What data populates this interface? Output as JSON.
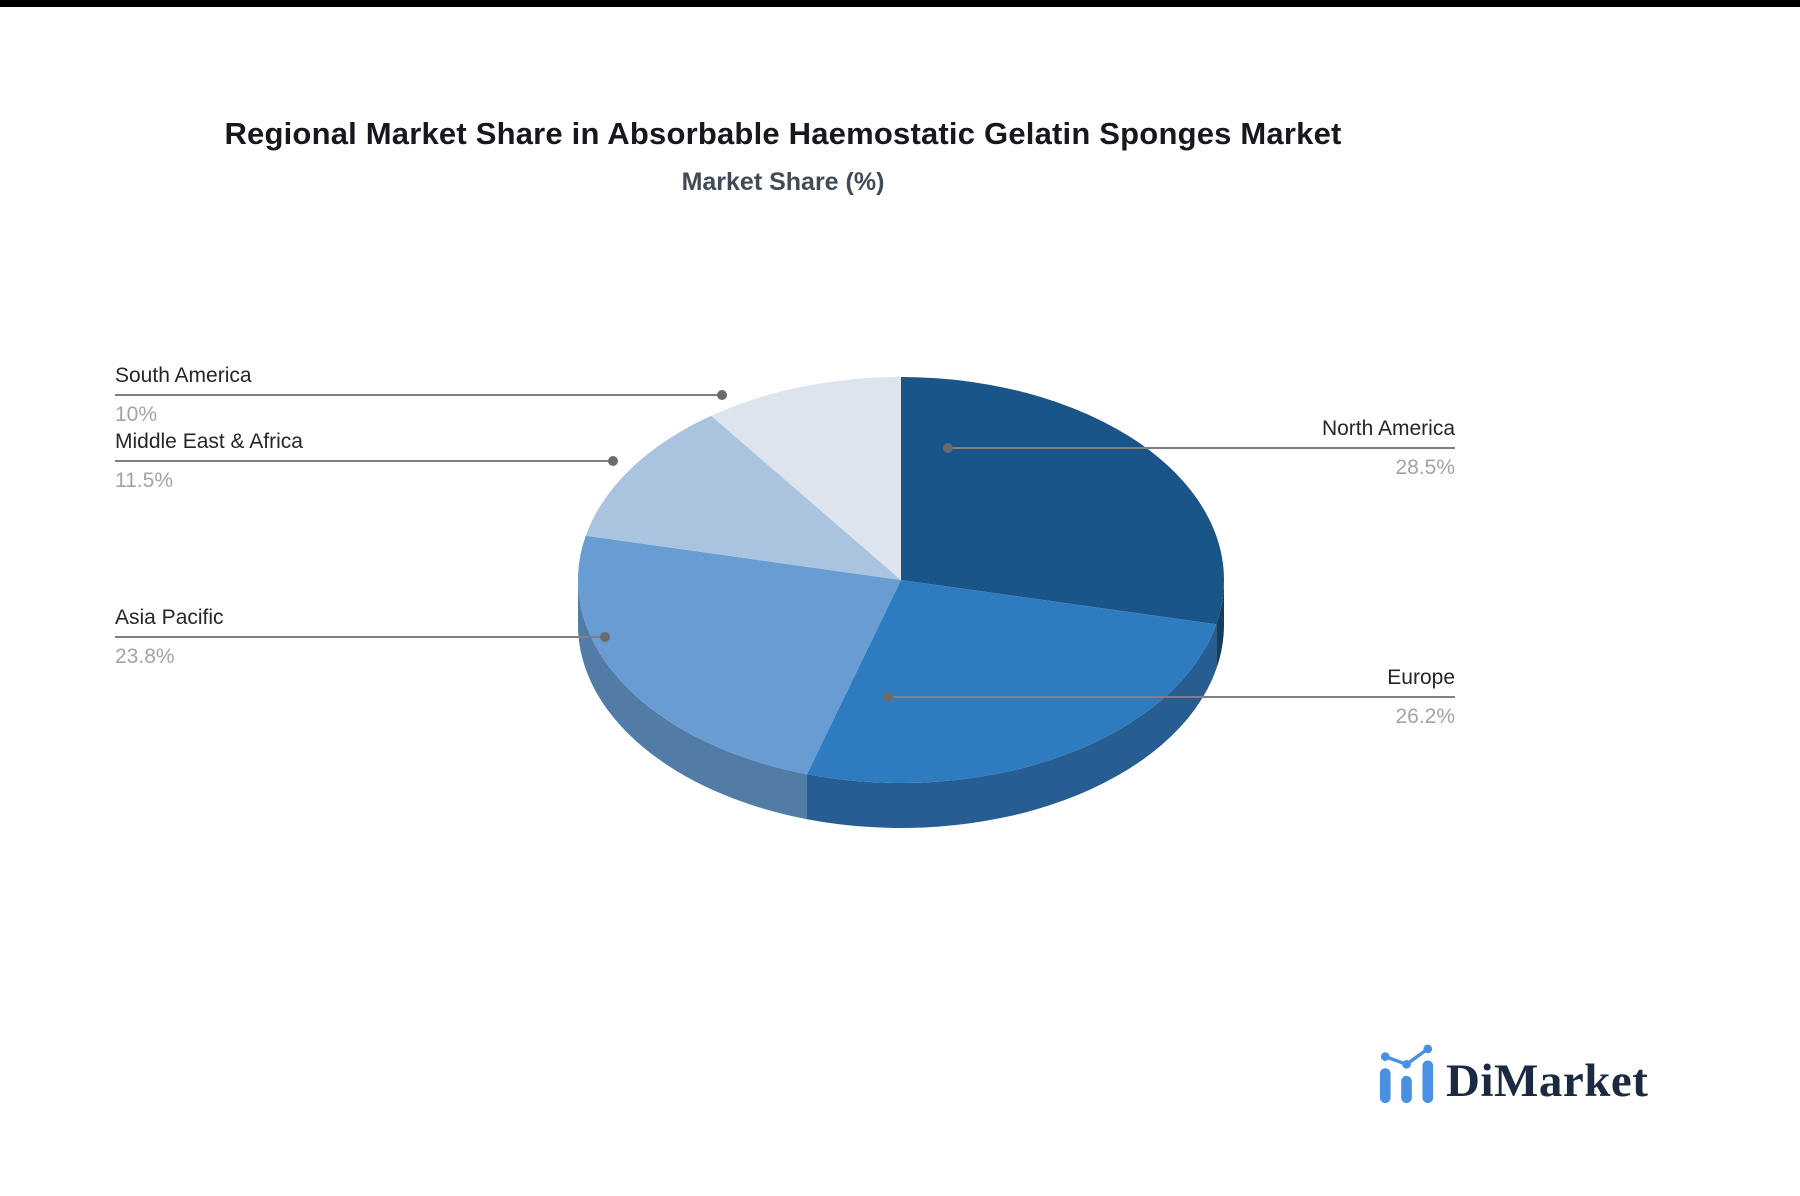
{
  "page": {
    "title": "Regional Market Share in Absorbable Haemostatic Gelatin Sponges Market",
    "subtitle": "Market Share (%)"
  },
  "chart_data": {
    "type": "pie",
    "style": "3d",
    "title": "Regional Market Share in Absorbable Haemostatic Gelatin Sponges Market",
    "subtitle": "Market Share (%)",
    "unit": "%",
    "start_angle": "12-oclock, clockwise",
    "legend_position": "callout-labels",
    "slices": [
      {
        "label": "North America",
        "value": 28.5,
        "display": "28.5%",
        "color": "#1a5589",
        "side_color": "#133e64"
      },
      {
        "label": "Europe",
        "value": 26.2,
        "display": "26.2%",
        "color": "#2e7bbf",
        "side_color": "#265e94"
      },
      {
        "label": "Asia Pacific",
        "value": 23.8,
        "display": "23.8%",
        "color": "#689cd2",
        "side_color": "#527ba6"
      },
      {
        "label": "Middle East & Africa",
        "value": 11.5,
        "display": "11.5%",
        "color": "#aac4e0",
        "side_color": "#8aa8c7"
      },
      {
        "label": "South America",
        "value": 10,
        "display": "10%",
        "color": "#dde4ed",
        "side_color": "#b9c3d1"
      }
    ],
    "label_color": "#23272b",
    "value_color": "#a0a4a8",
    "leader_line_color": "#808080"
  },
  "logo": {
    "text": "DiMarket",
    "icon": "bar-chart-trend-icon",
    "icon_color": "#4a90e2",
    "text_color": "#1b2a41"
  }
}
